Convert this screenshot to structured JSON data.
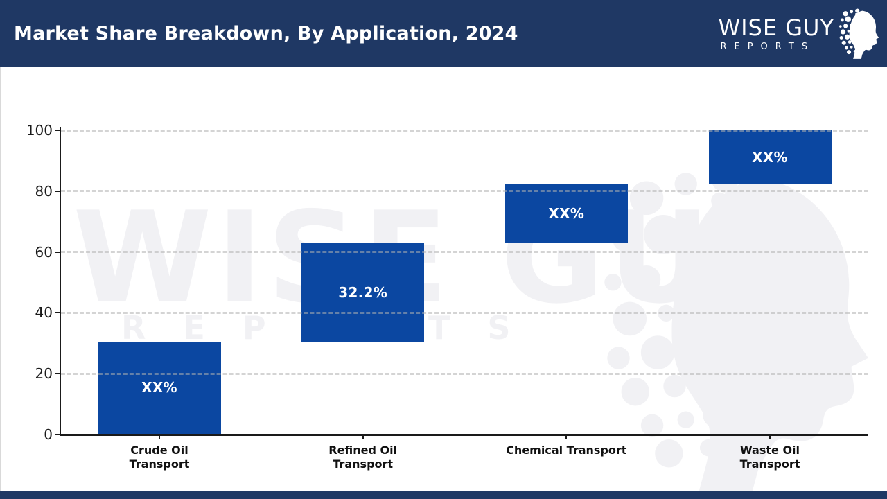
{
  "header": {
    "title": "Market Share Breakdown, By Application, 2024",
    "logo": {
      "line1": "WISE GUY",
      "line2": "REPORTS"
    }
  },
  "watermark": {
    "line1": "WISE GUY",
    "line2": "REPORTS"
  },
  "chart_data": {
    "type": "bar",
    "subtype": "floating-segment waterfall of market share percentages",
    "title": "Market Share Breakdown, By Application, 2024",
    "categories": [
      "Crude Oil Transport",
      "Refined Oil Transport",
      "Chemical Transport",
      "Waste Oil Transport"
    ],
    "category_lines": [
      [
        "Crude Oil",
        "Transport"
      ],
      [
        "Refined Oil",
        "Transport"
      ],
      [
        "Chemical Transport"
      ],
      [
        "Waste Oil",
        "Transport"
      ]
    ],
    "segments": [
      {
        "category": "Crude Oil Transport",
        "start": 0,
        "end": 30.6,
        "label": "XX%"
      },
      {
        "category": "Refined Oil Transport",
        "start": 30.6,
        "end": 62.8,
        "label": "32.2%",
        "value": 32.2
      },
      {
        "category": "Chemical Transport",
        "start": 62.8,
        "end": 82.3,
        "label": "XX%"
      },
      {
        "category": "Waste Oil Transport",
        "start": 82.3,
        "end": 100,
        "label": "XX%"
      }
    ],
    "xlabel": "",
    "ylabel": "",
    "ylim": [
      0,
      100
    ],
    "y_ticks": [
      0,
      20,
      40,
      60,
      80,
      100
    ],
    "grid": "horizontal dashed gridlines drawn over bars",
    "legend": "none",
    "bar_color": "#0b47a1",
    "bar_label_color": "#ffffff"
  },
  "colors": {
    "header_bg": "#1f3864",
    "footer_bg": "#1f3864",
    "bar": "#0b47a1",
    "gridline": "#c9c9c9",
    "axis": "#1a1a1a",
    "watermark": "#f1f1f4"
  }
}
